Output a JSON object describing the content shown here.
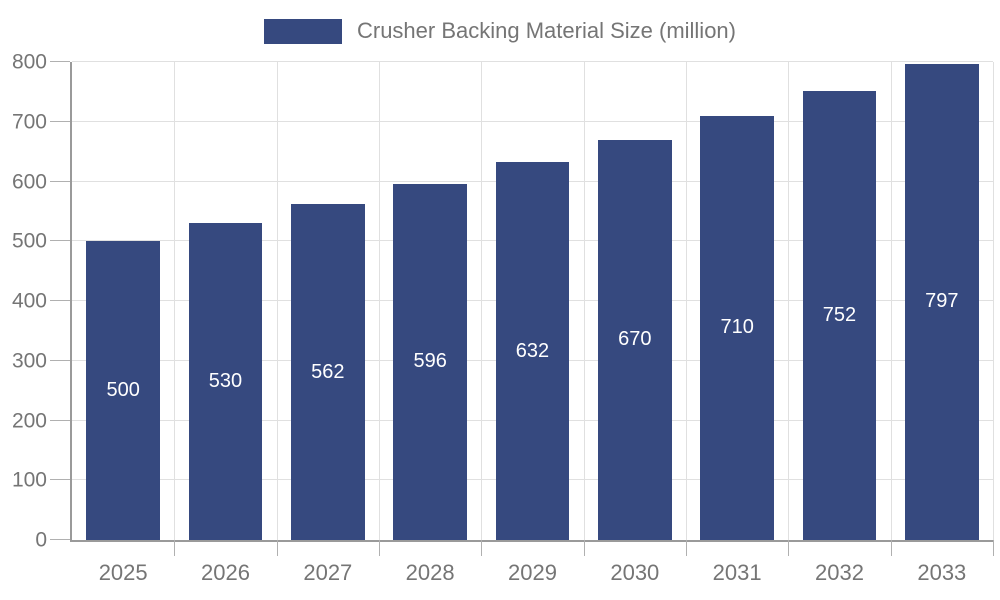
{
  "chart_data": {
    "type": "bar",
    "title": "Crusher Backing Material Size (million)",
    "legend": {
      "label": "Crusher Backing Material Size (million)",
      "position": "top-center"
    },
    "categories": [
      "2025",
      "2026",
      "2027",
      "2028",
      "2029",
      "2030",
      "2031",
      "2032",
      "2033"
    ],
    "series": [
      {
        "name": "Crusher Backing Material Size (million)",
        "values": [
          500,
          530,
          562,
          596,
          632,
          670,
          710,
          752,
          797
        ]
      }
    ],
    "xlabel": "",
    "ylabel": "",
    "ylim": [
      0,
      800
    ],
    "yticks": [
      0,
      100,
      200,
      300,
      400,
      500,
      600,
      700,
      800
    ],
    "grid": true,
    "bar_labels_visible": true,
    "colors": {
      "bar": "#36497f",
      "bar_label": "#ffffff",
      "axis_text": "#757575",
      "axis_line": "#9a9a9a",
      "gridline": "#e0e0e0",
      "background": "#ffffff"
    }
  }
}
